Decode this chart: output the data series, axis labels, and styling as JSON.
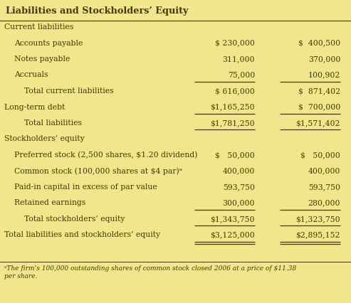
{
  "title": "Liabilities and Stockholders’ Equity",
  "bg_color": "#f0e68c",
  "text_color": "#4a3800",
  "font_size": 7.8,
  "small_font_size": 6.5,
  "rows": [
    {
      "label": "Current liabilities",
      "col1": "",
      "col2": "",
      "indent": 0,
      "underline1": false,
      "underline2": false,
      "double1": false,
      "double2": false
    },
    {
      "label": "Accounts payable",
      "col1": "$ 230,000",
      "col2": "$  400,500",
      "indent": 1,
      "underline1": false,
      "underline2": false,
      "double1": false,
      "double2": false
    },
    {
      "label": "Notes payable",
      "col1": "311,000",
      "col2": "370,000",
      "indent": 1,
      "underline1": false,
      "underline2": false,
      "double1": false,
      "double2": false
    },
    {
      "label": "Accruals",
      "col1": "75,000",
      "col2": "100,902",
      "indent": 1,
      "underline1": true,
      "underline2": true,
      "double1": false,
      "double2": false
    },
    {
      "label": "Total current liabilities",
      "col1": "$ 616,000",
      "col2": "$  871,402",
      "indent": 2,
      "underline1": false,
      "underline2": false,
      "double1": false,
      "double2": false
    },
    {
      "label": "Long-term debt",
      "col1": "$1,165,250",
      "col2": "$  700,000",
      "indent": 0,
      "underline1": true,
      "underline2": true,
      "double1": false,
      "double2": false
    },
    {
      "label": "Total liabilities",
      "col1": "$1,781,250",
      "col2": "$1,571,402",
      "indent": 2,
      "underline1": true,
      "underline2": true,
      "double1": false,
      "double2": false
    },
    {
      "label": "Stockholders’ equity",
      "col1": "",
      "col2": "",
      "indent": 0,
      "underline1": false,
      "underline2": false,
      "double1": false,
      "double2": false
    },
    {
      "label": "Preferred stock (2,500 shares, $1.20 dividend)",
      "col1": "$   50,000",
      "col2": "$   50,000",
      "indent": 1,
      "underline1": false,
      "underline2": false,
      "double1": false,
      "double2": false
    },
    {
      "label": "Common stock (100,000 shares at $4 par)ᵃ",
      "col1": "400,000",
      "col2": "400,000",
      "indent": 1,
      "underline1": false,
      "underline2": false,
      "double1": false,
      "double2": false
    },
    {
      "label": "Paid-in capital in excess of par value",
      "col1": "593,750",
      "col2": "593,750",
      "indent": 1,
      "underline1": false,
      "underline2": false,
      "double1": false,
      "double2": false
    },
    {
      "label": "Retained earnings",
      "col1": "300,000",
      "col2": "280,000",
      "indent": 1,
      "underline1": true,
      "underline2": true,
      "double1": false,
      "double2": false
    },
    {
      "label": "Total stockholders’ equity",
      "col1": "$1,343,750",
      "col2": "$1,323,750",
      "indent": 2,
      "underline1": true,
      "underline2": true,
      "double1": false,
      "double2": false
    },
    {
      "label": "Total liabilities and stockholders’ equity",
      "col1": "$3,125,000",
      "col2": "$2,895,152",
      "indent": 0,
      "underline1": true,
      "underline2": true,
      "double1": true,
      "double2": true
    }
  ],
  "footnote": "ᵃThe firm’s 100,000 outstanding shares of common stock closed 2006 at a price of $11.38\nper share."
}
